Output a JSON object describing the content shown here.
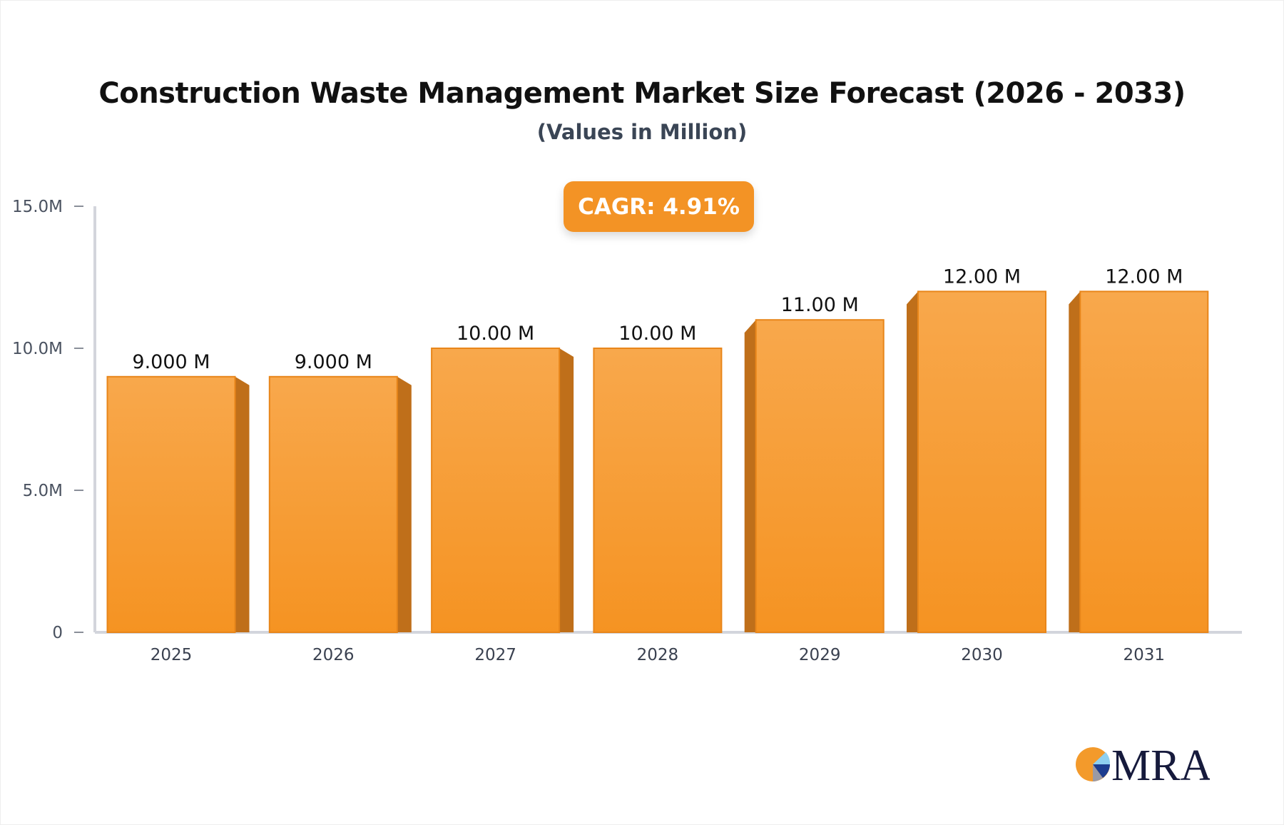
{
  "chart_data": {
    "type": "bar",
    "title": "Construction Waste Management Market Size Forecast (2026 - 2033)",
    "subtitle": "(Values in Million)",
    "categories": [
      "2025",
      "2026",
      "2027",
      "2028",
      "2029",
      "2030",
      "2031"
    ],
    "values": [
      9,
      9,
      10,
      10,
      11,
      12,
      12
    ],
    "data_labels": [
      "9.000 M",
      "9.000 M",
      "10.00 M",
      "10.00 M",
      "11.00 M",
      "12.00 M",
      "12.00 M"
    ],
    "y_ticks": [
      {
        "value": 0,
        "label": "0"
      },
      {
        "value": 5,
        "label": "5.0M"
      },
      {
        "value": 10,
        "label": "10.0M"
      },
      {
        "value": 15,
        "label": "15.0M"
      }
    ],
    "ylim": [
      0,
      15
    ],
    "grid": false,
    "legend": "none",
    "bar_color": "#f7a040",
    "bar_side_color": "#bf6f1a"
  },
  "badge": {
    "cagr": "CAGR: 4.91%"
  },
  "logo": {
    "text": "MRA"
  }
}
